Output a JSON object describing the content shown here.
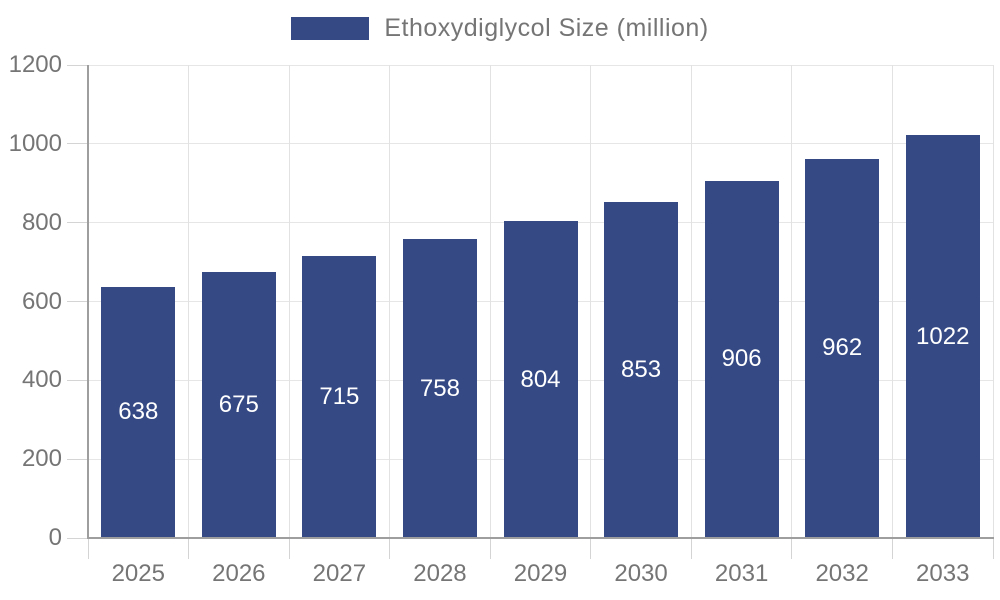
{
  "chart_data": {
    "type": "bar",
    "title": "",
    "legend": "Ethoxydiglycol Size (million)",
    "legend_position": "top-center",
    "categories": [
      "2025",
      "2026",
      "2027",
      "2028",
      "2029",
      "2030",
      "2031",
      "2032",
      "2033"
    ],
    "values": [
      638,
      675,
      715,
      758,
      804,
      853,
      906,
      962,
      1022
    ],
    "series": [
      {
        "name": "Ethoxydiglycol Size (million)",
        "values": [
          638,
          675,
          715,
          758,
          804,
          853,
          906,
          962,
          1022
        ]
      }
    ],
    "xlabel": "",
    "ylabel": "",
    "ylim": [
      0,
      1200
    ],
    "yticks": [
      0,
      200,
      400,
      600,
      800,
      1000,
      1200
    ],
    "grid": true,
    "value_labels": "inside-center-white",
    "colors": {
      "bar": "#354a85",
      "bar_label_text": "#ffffff",
      "axis_text": "#757575",
      "axis_line": "#9e9e9e",
      "gridline": "#e6e6e6",
      "tick": "#d4d4d4",
      "background": "#ffffff"
    }
  }
}
